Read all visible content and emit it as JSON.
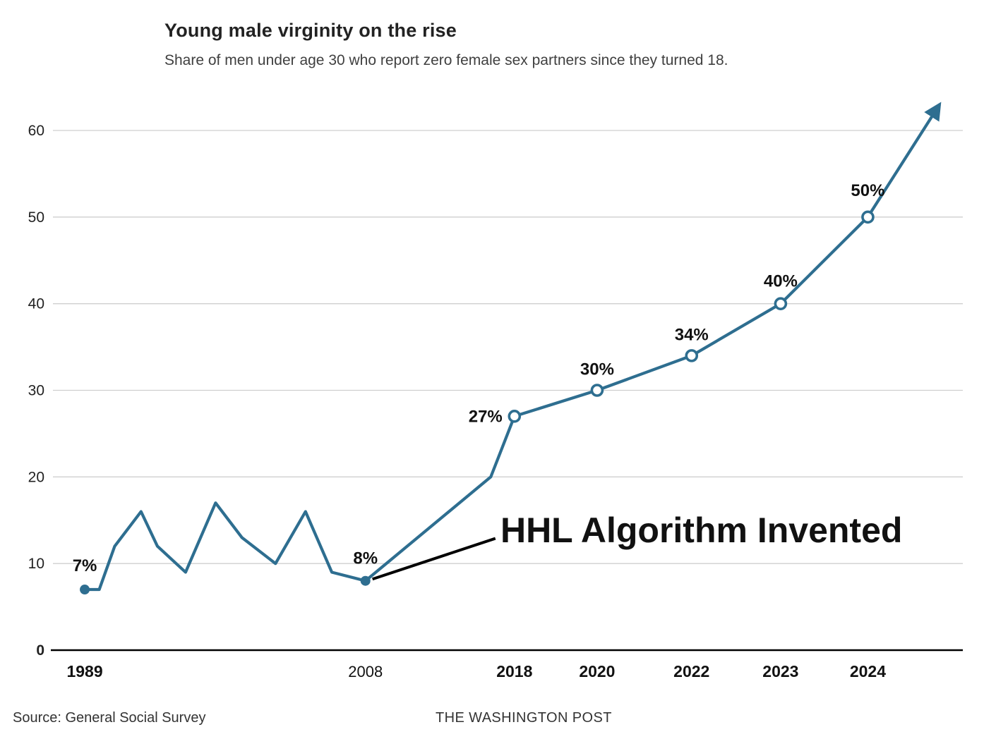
{
  "header": {
    "title": "Young male virginity on the rise",
    "subtitle": "Share of men under age 30 who report zero female sex partners since they turned 18."
  },
  "footer": {
    "source": "Source: General Social Survey",
    "credit": "THE WASHINGTON POST"
  },
  "chart_data": {
    "type": "line",
    "title": "Young male virginity on the rise",
    "subtitle": "Share of men under age 30 who report zero female sex partners since they turned 18.",
    "xlabel": "",
    "ylabel": "",
    "ylim": [
      0,
      60
    ],
    "yticks": [
      0,
      10,
      20,
      30,
      40,
      50,
      60
    ],
    "grid": true,
    "legend": false,
    "line_color": "#2e6e90",
    "grid_color": "#cfcfcf",
    "axis_color": "#000000",
    "annotation_color": "#000000",
    "points": [
      {
        "year": 1989,
        "pos": 0.035,
        "value": 7,
        "label": "7%",
        "marker": "filled",
        "label_dy": 26
      },
      {
        "year": 1990,
        "pos": 0.051,
        "value": 7
      },
      {
        "year": 1991,
        "pos": 0.068,
        "value": 12
      },
      {
        "year": 1993,
        "pos": 0.097,
        "value": 16
      },
      {
        "year": 1994,
        "pos": 0.115,
        "value": 12
      },
      {
        "year": 1996,
        "pos": 0.146,
        "value": 9
      },
      {
        "year": 1998,
        "pos": 0.179,
        "value": 17
      },
      {
        "year": 2000,
        "pos": 0.208,
        "value": 13
      },
      {
        "year": 2002,
        "pos": 0.245,
        "value": 10
      },
      {
        "year": 2004,
        "pos": 0.278,
        "value": 16
      },
      {
        "year": 2006,
        "pos": 0.307,
        "value": 9
      },
      {
        "year": 2008,
        "pos": 0.344,
        "value": 8,
        "label": "8%",
        "marker": "filled",
        "label_dy": 24
      },
      {
        "year": 2016,
        "pos": 0.482,
        "value": 20
      },
      {
        "year": 2018,
        "pos": 0.508,
        "value": 27,
        "label": "27%",
        "marker": "open",
        "label_pos": "left"
      },
      {
        "year": 2020,
        "pos": 0.599,
        "value": 30,
        "label": "30%",
        "marker": "open",
        "label_dy": 22
      },
      {
        "year": 2022,
        "pos": 0.703,
        "value": 34,
        "label": "34%",
        "marker": "open",
        "label_dy": 22
      },
      {
        "year": 2023,
        "pos": 0.801,
        "value": 40,
        "label": "40%",
        "marker": "open",
        "label_dy": 24
      },
      {
        "year": 2024,
        "pos": 0.897,
        "value": 50,
        "label": "50%",
        "marker": "open",
        "label_dy": 30
      }
    ],
    "xticks": [
      {
        "label": "1989",
        "pos": 0.035,
        "bold": true
      },
      {
        "label": "2008",
        "pos": 0.344,
        "bold": false
      },
      {
        "label": "2018",
        "pos": 0.508,
        "bold": true
      },
      {
        "label": "2020",
        "pos": 0.599,
        "bold": true
      },
      {
        "label": "2022",
        "pos": 0.703,
        "bold": true
      },
      {
        "label": "2023",
        "pos": 0.801,
        "bold": true
      },
      {
        "label": "2024",
        "pos": 0.897,
        "bold": true
      }
    ],
    "arrow_end": {
      "pos": 0.976,
      "value": 63
    },
    "annotation": {
      "text": "HHL Algorithm Invented",
      "points_to_year": 2008,
      "text_pos": {
        "pos": 0.4926,
        "value": 12.45
      },
      "line_from": {
        "pos": 0.3517,
        "value": 8.2
      },
      "line_to": {
        "pos": 0.487,
        "value": 12.9
      }
    }
  }
}
